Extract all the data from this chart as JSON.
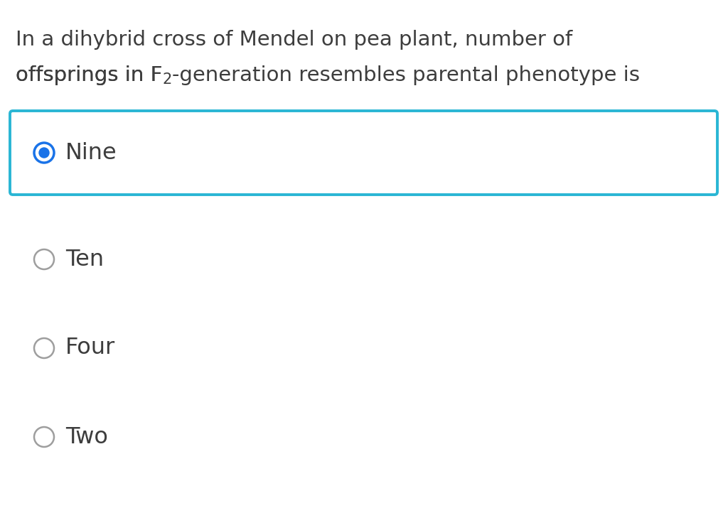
{
  "title_line1": "In a dihybrid cross of Mendel on pea plant, number of",
  "title_line2_pre": "offsprings in F",
  "title_line2_sub": "2",
  "title_line2_post": "-generation resembles parental phenotype is",
  "options": [
    "Nine",
    "Ten",
    "Four",
    "Two"
  ],
  "selected_index": 0,
  "bg_color": "#ffffff",
  "text_color": "#3d3d3d",
  "selected_box_border": "#29b6d4",
  "selected_radio_outer": "#1a73e8",
  "selected_radio_inner": "#1a73e8",
  "unselected_radio_color": "#9e9e9e",
  "title_fontsize": 21,
  "option_fontsize": 23
}
